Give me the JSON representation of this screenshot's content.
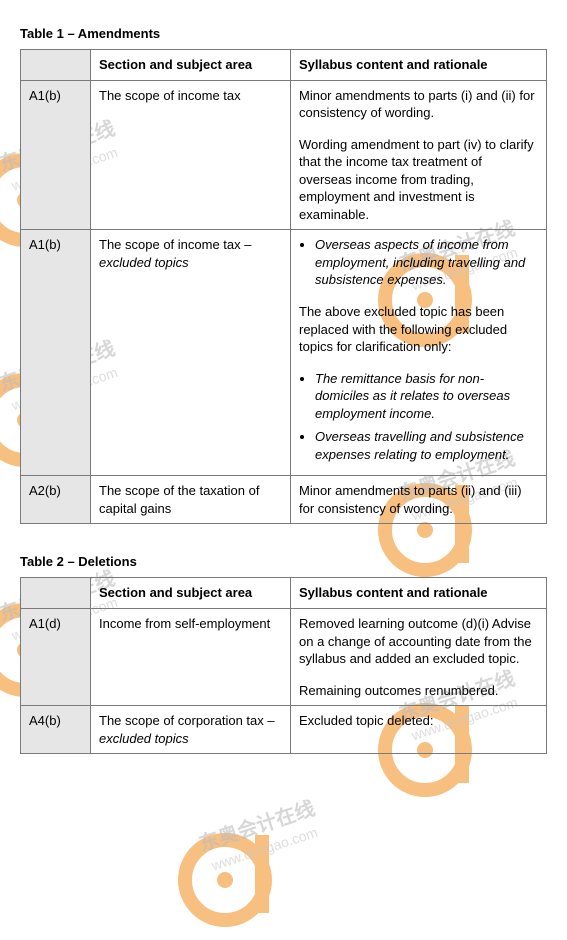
{
  "watermark": {
    "text_cn": "东奥会计在线",
    "text_url": "www.dongao.com",
    "color_ring": "#f28c1a",
    "color_text": "#cccccc"
  },
  "tables": [
    {
      "title": "Table 1 – Amendments",
      "columns": [
        "",
        "Section and subject area",
        "Syllabus content and rationale"
      ],
      "rows": [
        {
          "code": "A1(b)",
          "subject_html": "The scope of income tax",
          "content_html": "<p class='para'>Minor amendments to parts (i) and (ii) for consistency of wording.</p><p class='para'>Wording amendment to part (iv) to clarify that the income tax treatment of overseas income from trading, employment and investment is examinable.</p>"
        },
        {
          "code": "A1(b)",
          "subject_html": "The scope of income tax – <em>excluded topics</em>",
          "content_html": "<ul><li><em>Overseas aspects of income from employment, including travelling and subsistence expenses.</em></li></ul><p class='para' style='margin-top:14px;'>The above excluded topic has been replaced with the following excluded topics for clarification only:</p><ul><li><em>The remittance basis for non-domiciles as it relates to overseas employment income.</em></li><li><em>Overseas travelling and subsistence expenses relating to employment.</em></li></ul>"
        },
        {
          "code": "A2(b)",
          "subject_html": "The scope of the taxation of capital gains",
          "content_html": "<p class='para'>Minor amendments to parts (ii) and (iii) for consistency of wording.</p>"
        }
      ]
    },
    {
      "title": "Table 2 – Deletions",
      "columns": [
        "",
        "Section and subject area",
        "Syllabus content and rationale"
      ],
      "rows": [
        {
          "code": "A1(d)",
          "subject_html": "Income from self-employment",
          "content_html": "<p class='para'>Removed learning outcome (d)(i) Advise on a change of accounting date from the syllabus and added an excluded topic.</p><p class='para'>Remaining outcomes renumbered.</p>"
        },
        {
          "code": "A4(b)",
          "subject_html": "The scope of corporation tax – <em>excluded topics</em>",
          "content_html": "<p class='para'>Excluded topic deleted:</p>"
        }
      ]
    }
  ]
}
